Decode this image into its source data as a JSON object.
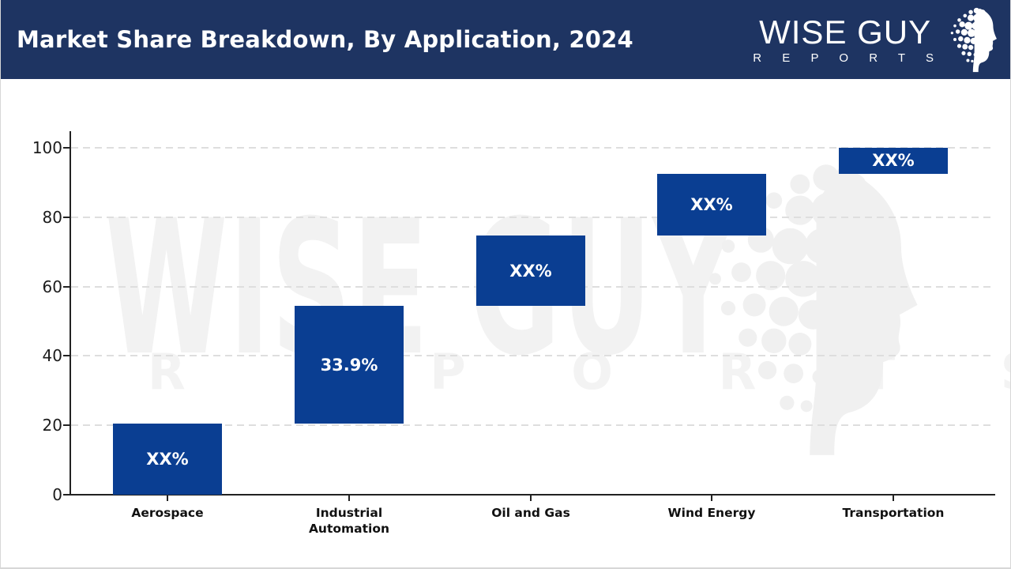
{
  "header": {
    "title": "Market Share Breakdown, By Application, 2024",
    "bg_color": "#1e3462",
    "logo": {
      "line1": "WISE GUY",
      "line2": "R E P O R T S"
    }
  },
  "watermark": {
    "line1": "WISE GUY",
    "line2": "R E P O R T S"
  },
  "chart_data": {
    "type": "bar",
    "subtype": "waterfall-floating-segments",
    "title": "Market Share Breakdown, By Application, 2024",
    "categories": [
      "Aerospace",
      "Industrial\nAutomation",
      "Oil and Gas",
      "Wind Energy",
      "Transportation"
    ],
    "segments": [
      {
        "category": "Aerospace",
        "label": "XX%",
        "start": 0,
        "end": 20.5
      },
      {
        "category": "Industrial Automation",
        "label": "33.9%",
        "start": 20.5,
        "end": 54.4
      },
      {
        "category": "Oil and Gas",
        "label": "XX%",
        "start": 54.4,
        "end": 74.7
      },
      {
        "category": "Wind Energy",
        "label": "XX%",
        "start": 74.7,
        "end": 92.5
      },
      {
        "category": "Transportation",
        "label": "XX%",
        "start": 92.5,
        "end": 100
      }
    ],
    "values_span_pct": [
      20.5,
      33.9,
      20.3,
      17.8,
      7.5
    ],
    "ylim": [
      0,
      100
    ],
    "yticks": [
      0,
      20,
      40,
      60,
      80,
      100
    ],
    "ytick_labels": [
      "0",
      "20",
      "40",
      "60",
      "80",
      "100"
    ],
    "grid": "horizontal-dashed",
    "legend": "none",
    "colors": {
      "bar": "#0a3e92",
      "bar_label": "#ffffff",
      "grid": "#dedede",
      "axis": "#222222",
      "tick_text": "#1c1c1c",
      "category_text": "#111111",
      "watermark": "#f2f2f2"
    }
  }
}
